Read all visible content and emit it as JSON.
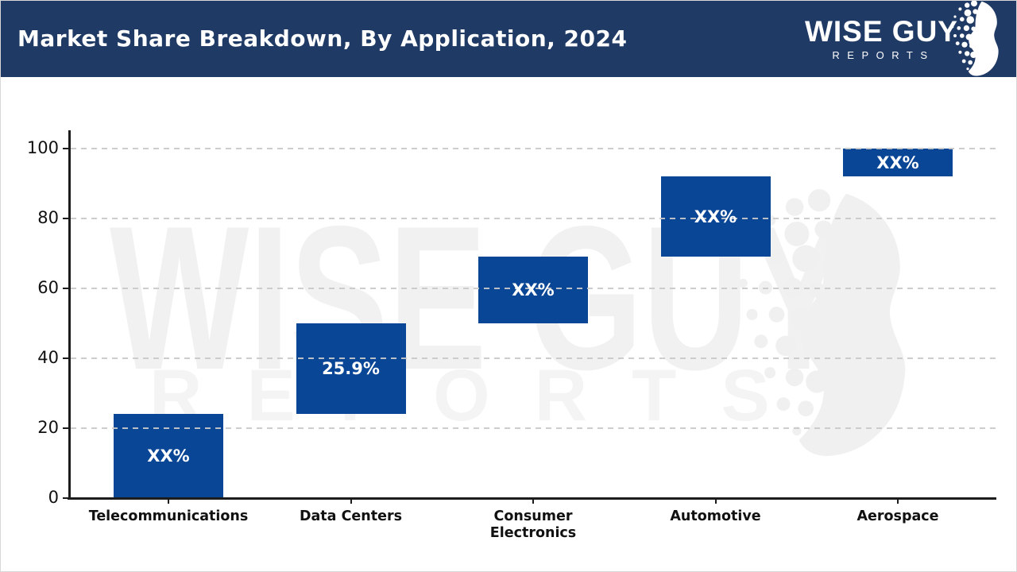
{
  "header": {
    "title": "Market Share Breakdown, By Application, 2024",
    "logo": {
      "name": "WISE GUY",
      "sub": "REPORTS"
    }
  },
  "watermark": {
    "name": "WISE GUY",
    "sub": "REPORTS"
  },
  "chart_data": {
    "type": "bar",
    "variant": "floating-segment-waterfall",
    "title": "Market Share Breakdown, By Application, 2024",
    "categories": [
      "Telecommunications",
      "Data Centers",
      "Consumer Electronics",
      "Automotive",
      "Aerospace"
    ],
    "category_display": [
      "Telecommunications",
      "Data Centers",
      "Consumer\nElectronics",
      "Automotive",
      "Aerospace"
    ],
    "segments": [
      {
        "category": "Telecommunications",
        "start": 0,
        "end": 24,
        "label": "XX%"
      },
      {
        "category": "Data Centers",
        "start": 24,
        "end": 50,
        "label": "25.9%"
      },
      {
        "category": "Consumer Electronics",
        "start": 50,
        "end": 69,
        "label": "XX%"
      },
      {
        "category": "Automotive",
        "start": 69,
        "end": 92,
        "label": "XX%"
      },
      {
        "category": "Aerospace",
        "start": 92,
        "end": 100,
        "label": "XX%"
      }
    ],
    "yticks": [
      0,
      20,
      40,
      60,
      80,
      100
    ],
    "ylim": [
      0,
      105
    ],
    "xlabel": "",
    "ylabel": "",
    "grid": "horizontal dashed, drawn over bars",
    "legend_position": "none"
  },
  "colors": {
    "header_bg": "#203a66",
    "bar": "#0a4696",
    "bar_label": "#ffffff",
    "axis": "#1c1c1c",
    "grid": "#c9c9c9",
    "watermark": "#f1f1f1"
  },
  "icons": {
    "logo_head": "dotted-head-profile"
  }
}
